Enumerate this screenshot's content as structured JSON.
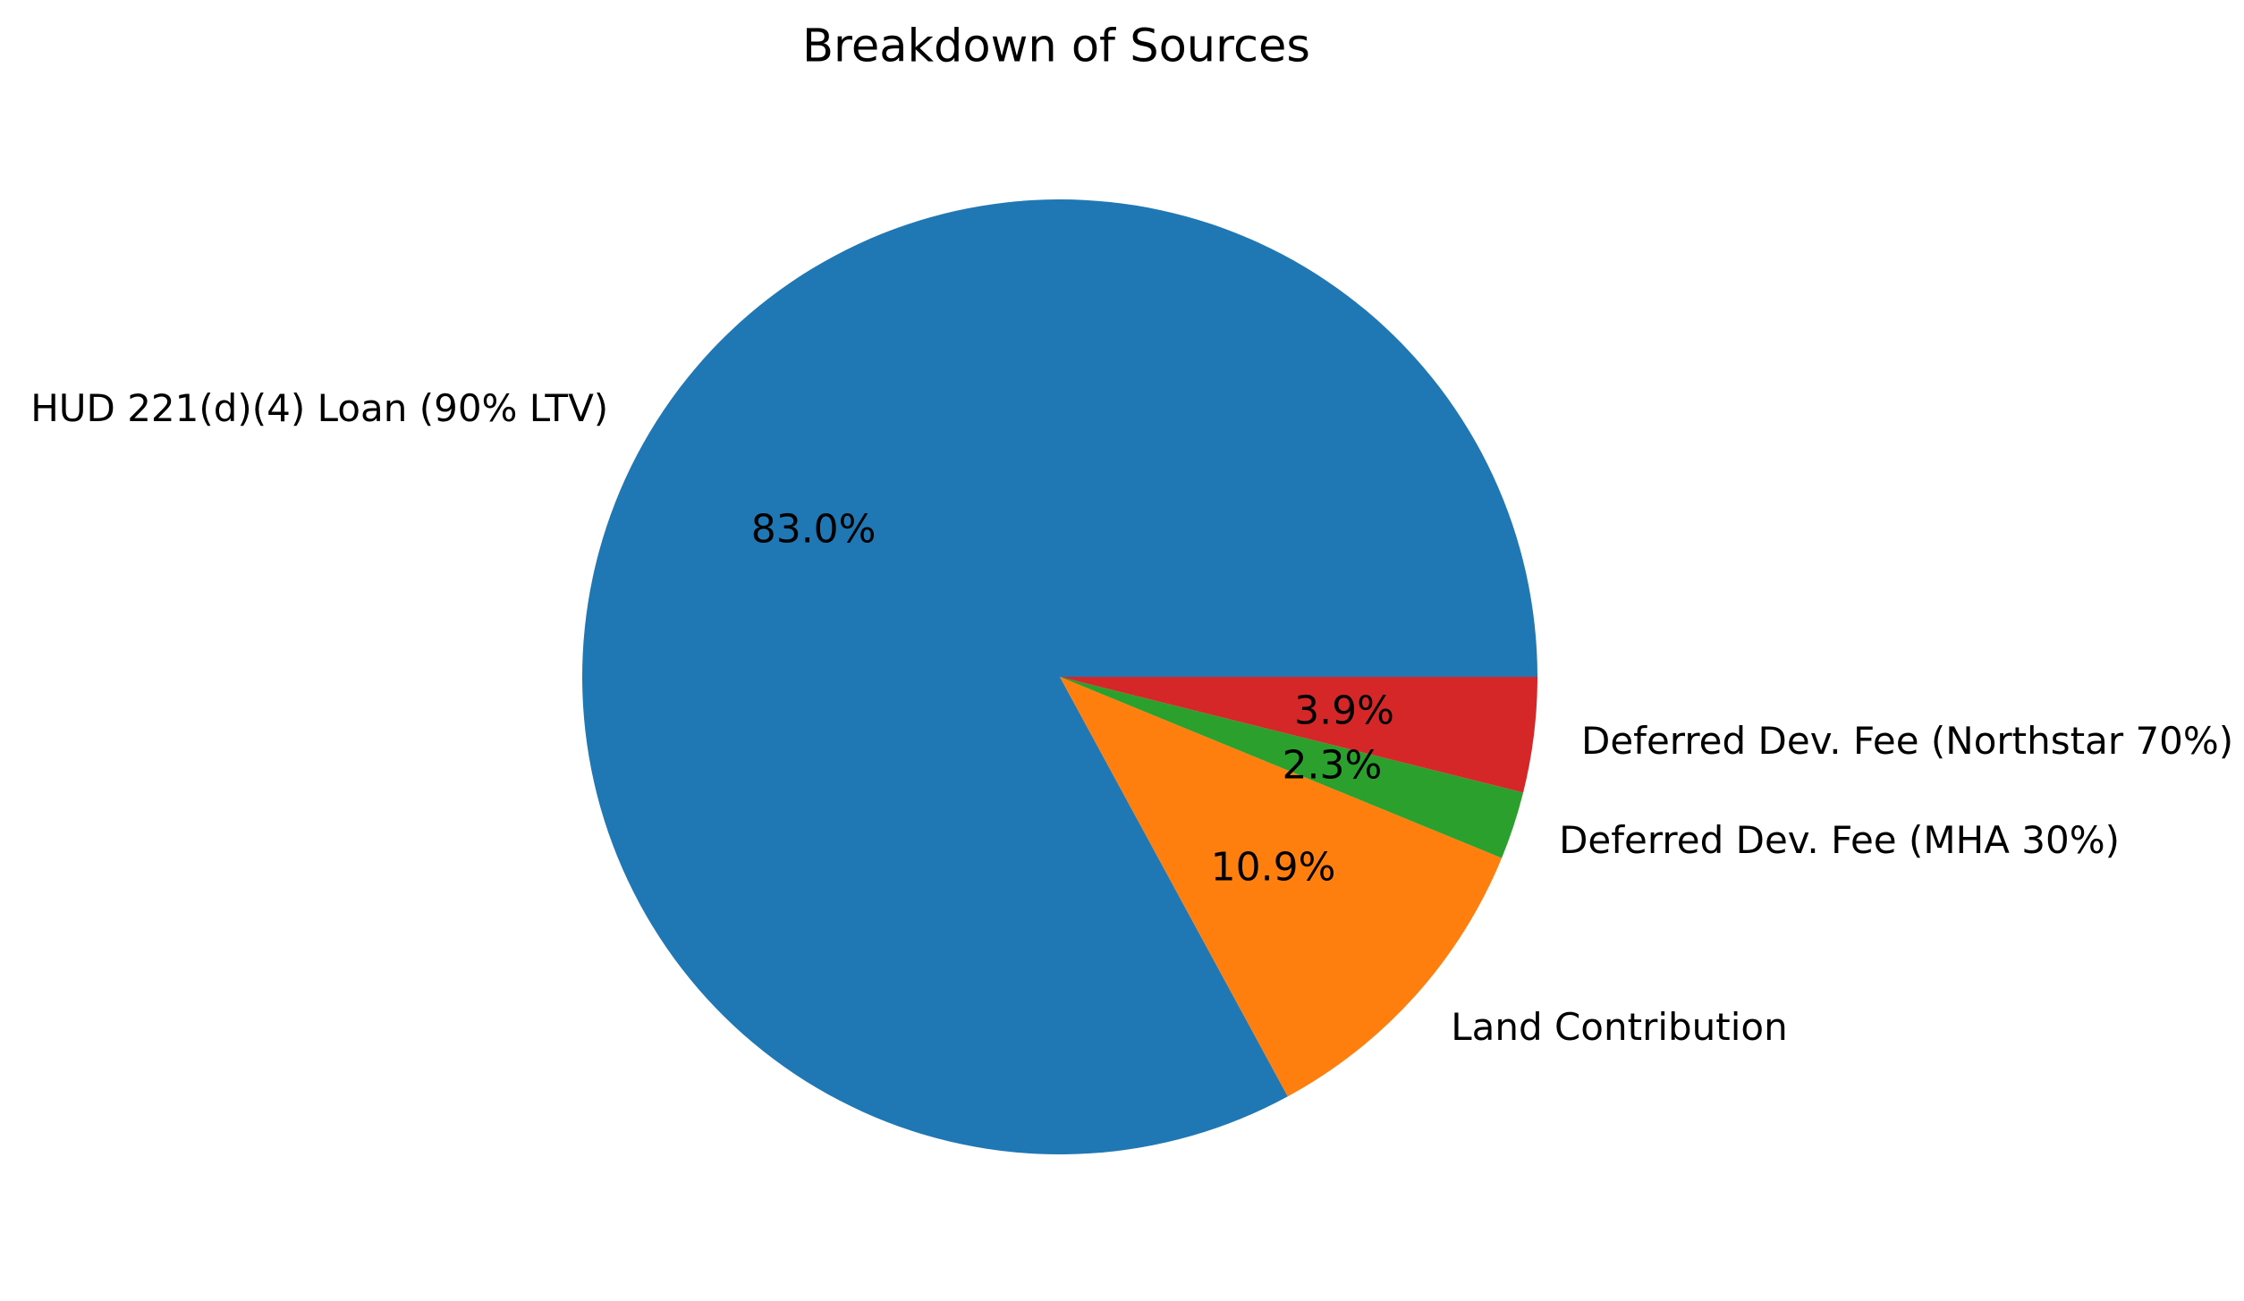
{
  "chart_data": {
    "type": "pie",
    "title": "Breakdown of Sources",
    "start_angle": 0,
    "counterclockwise": true,
    "label_distance": 1.1,
    "pct_distance": 0.6,
    "legend": "none",
    "background_color": "#ffffff",
    "text_color": "#000000",
    "slices": [
      {
        "label": "HUD 221(d)(4) Loan (90% LTV)",
        "value": 83.0,
        "pct_label": "83.0%",
        "color": "#1f77b4"
      },
      {
        "label": "Land Contribution",
        "value": 10.9,
        "pct_label": "10.9%",
        "color": "#ff7f0e"
      },
      {
        "label": "Deferred Dev. Fee (MHA 30%)",
        "value": 2.3,
        "pct_label": "2.3%",
        "color": "#2ca02c"
      },
      {
        "label": "Deferred Dev. Fee (Northstar 70%)",
        "value": 3.9,
        "pct_label": "3.9%",
        "color": "#d62728"
      }
    ]
  }
}
